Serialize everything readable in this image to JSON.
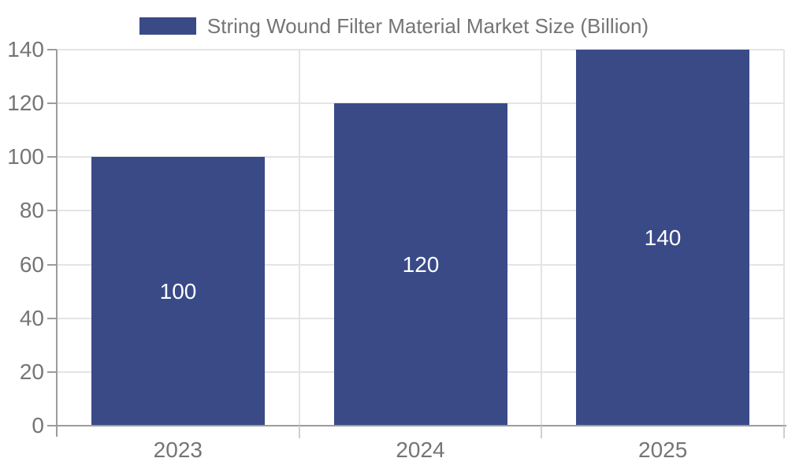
{
  "legend": {
    "label": "String Wound Filter Material Market Size (Billion)"
  },
  "chart_data": {
    "type": "bar",
    "title": "String Wound Filter Material Market Size (Billion)",
    "categories": [
      "2023",
      "2024",
      "2025"
    ],
    "values": [
      100,
      120,
      140
    ],
    "bar_labels": [
      "100",
      "120",
      "140"
    ],
    "xlabel": "",
    "ylabel": "",
    "ylim": [
      0,
      140
    ],
    "yticks": [
      0,
      20,
      40,
      60,
      80,
      100,
      120,
      140
    ],
    "grid": true,
    "legend_position": "top-center",
    "colors": {
      "bar": "#394A87",
      "axis": "#9C9C9C",
      "grid": "#E4E4E4",
      "tick_text": "#757575",
      "title_text": "#757575",
      "bar_label_text": "#FFFFFF",
      "background": "#FFFFFF"
    }
  }
}
